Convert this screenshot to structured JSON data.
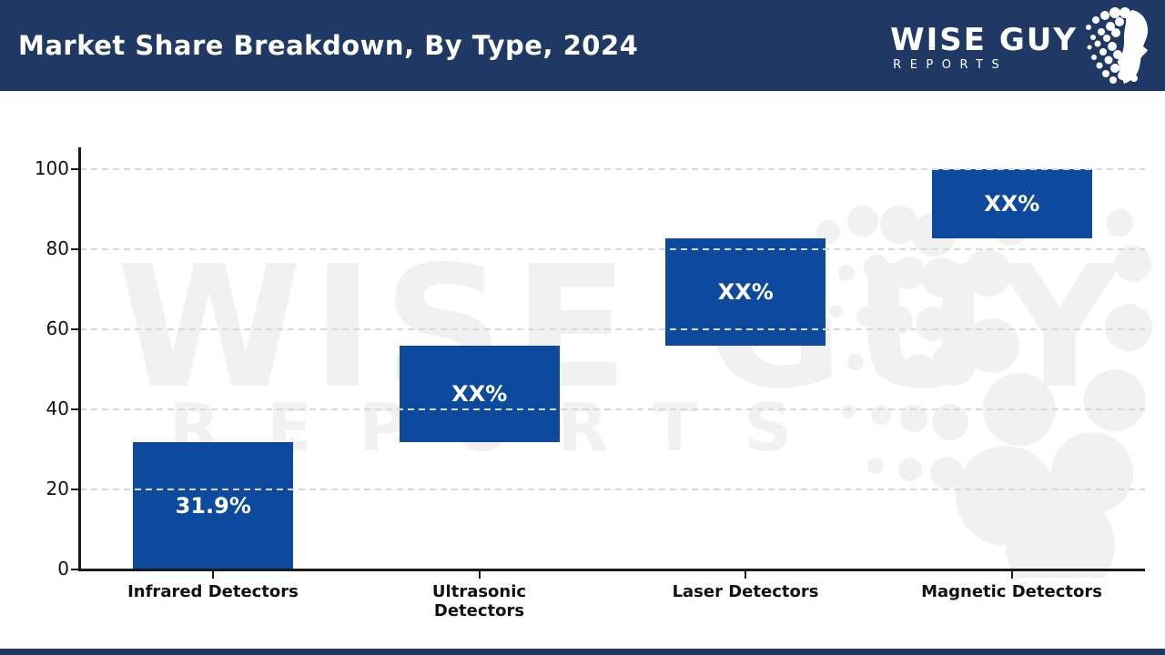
{
  "header": {
    "title": "Market Share Breakdown, By Type, 2024",
    "logo": {
      "brand": "WISE GUY",
      "sub": "REPORTS"
    }
  },
  "watermark": {
    "brand": "WISE GUY",
    "sub": "REPORTS"
  },
  "colors": {
    "header_bg": "#1F3864",
    "footer_bg": "#1F3864",
    "bar": "#0D4A9E",
    "grid": "#D9D9D9",
    "axis": "#1A1A1A",
    "title_text": "#FFFFFF",
    "bar_label_text": "#FFFFFF",
    "watermark": "#F1F1F1"
  },
  "chart_data": {
    "type": "bar",
    "subtype": "floating segment bars (waterfall-style share breakdown)",
    "title": "Market Share Breakdown, By Type, 2024",
    "categories": [
      "Infrared Detectors",
      "Ultrasonic Detectors",
      "Laser Detectors",
      "Magnetic Detectors"
    ],
    "category_label_lines": [
      [
        "Infrared Detectors"
      ],
      [
        "Ultrasonic",
        "Detectors"
      ],
      [
        "Laser Detectors"
      ],
      [
        "Magnetic Detectors"
      ]
    ],
    "segments": [
      {
        "category": "Infrared Detectors",
        "start": 0,
        "end": 31.9,
        "label": "31.9%"
      },
      {
        "category": "Ultrasonic Detectors",
        "start": 31.9,
        "end": 56,
        "label": "XX%"
      },
      {
        "category": "Laser Detectors",
        "start": 56,
        "end": 82.8,
        "label": "XX%"
      },
      {
        "category": "Magnetic Detectors",
        "start": 82.8,
        "end": 100,
        "label": "XX%"
      }
    ],
    "xlabel": "",
    "ylabel": "",
    "ylim": [
      0,
      105
    ],
    "yticks": [
      0,
      20,
      40,
      60,
      80,
      100
    ],
    "grid": "horizontal dashed",
    "legend": "none"
  }
}
